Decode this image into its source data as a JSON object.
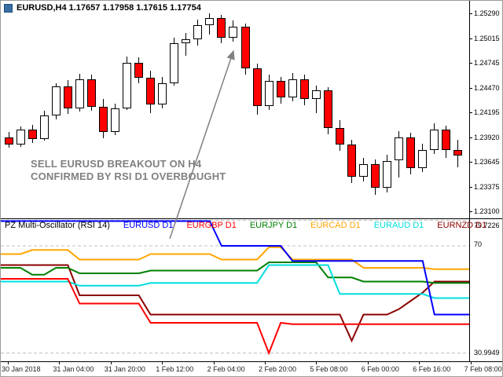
{
  "ui": {
    "symbol_header": "EURUSD,H4  1.17657 1.17958 1.17615 1.17754",
    "annotation_line1": "SELL EURUSD BREAKOUT ON H4",
    "annotation_line2": "CONFIRMED BY RSI D1 OVERBOUGHT",
    "annotation_color": "#808080",
    "indicator_title": "PZ Multi-Oscillator (RSI 14)"
  },
  "colors": {
    "background": "#FFFFFF",
    "axis_line": "#000000",
    "level_line": "#C0C0C0",
    "arrow": "#808080"
  },
  "chart_data": [
    {
      "type": "candlestick",
      "title": "EURUSD,H4",
      "ohlc_readout": {
        "open": "1.17657",
        "high": "1.17958",
        "low": "1.17615",
        "close": "1.17754"
      },
      "bull_color": "#FFFFFF",
      "bear_color": "#FF0000",
      "outline_color": "#000000",
      "ylim": [
        1.231,
        1.2529
      ],
      "y_axis_labels": [
        "1.25290",
        "1.25015",
        "1.24745",
        "1.24470",
        "1.24195",
        "1.23920",
        "1.23645",
        "1.23375",
        "1.23100"
      ],
      "x_axis_labels": [
        "30 Jan 2018",
        "31 Jan 04:00",
        "31 Jan 20:00",
        "1 Feb 12:00",
        "2 Feb 04:00",
        "2 Feb 20:00",
        "5 Feb 08:00",
        "6 Feb 00:00",
        "6 Feb 16:00",
        "7 Feb 08:00"
      ],
      "candles": [
        [
          1.2392,
          1.2398,
          1.238,
          1.2384
        ],
        [
          1.2384,
          1.2404,
          1.2381,
          1.24
        ],
        [
          1.24,
          1.2406,
          1.2386,
          1.239
        ],
        [
          1.239,
          1.2421,
          1.2388,
          1.2416
        ],
        [
          1.2416,
          1.2452,
          1.2412,
          1.2448
        ],
        [
          1.2448,
          1.2455,
          1.2418,
          1.2424
        ],
        [
          1.2424,
          1.2462,
          1.242,
          1.2456
        ],
        [
          1.2456,
          1.2461,
          1.2421,
          1.2426
        ],
        [
          1.2426,
          1.2434,
          1.2391,
          1.2398
        ],
        [
          1.2398,
          1.2429,
          1.2394,
          1.2424
        ],
        [
          1.2424,
          1.2481,
          1.2422,
          1.2474
        ],
        [
          1.2474,
          1.248,
          1.2452,
          1.2458
        ],
        [
          1.2458,
          1.2466,
          1.2419,
          1.2428
        ],
        [
          1.2428,
          1.2459,
          1.2424,
          1.2452
        ],
        [
          1.2452,
          1.2502,
          1.2449,
          1.2496
        ],
        [
          1.2496,
          1.2507,
          1.2482,
          1.25
        ],
        [
          1.25,
          1.2522,
          1.2493,
          1.2516
        ],
        [
          1.2516,
          1.2529,
          1.2506,
          1.2524
        ],
        [
          1.2524,
          1.2527,
          1.2496,
          1.2502
        ],
        [
          1.2502,
          1.2521,
          1.2498,
          1.2514
        ],
        [
          1.2514,
          1.2518,
          1.2461,
          1.2468
        ],
        [
          1.2468,
          1.2473,
          1.2417,
          1.2426
        ],
        [
          1.2426,
          1.2461,
          1.2422,
          1.2454
        ],
        [
          1.2454,
          1.2459,
          1.2429,
          1.2436
        ],
        [
          1.2436,
          1.2463,
          1.2432,
          1.2456
        ],
        [
          1.2456,
          1.2461,
          1.2427,
          1.2434
        ],
        [
          1.2434,
          1.2449,
          1.2419,
          1.2444
        ],
        [
          1.2444,
          1.2447,
          1.2395,
          1.2402
        ],
        [
          1.2402,
          1.2411,
          1.2377,
          1.2384
        ],
        [
          1.2384,
          1.2389,
          1.2341,
          1.2348
        ],
        [
          1.2348,
          1.2369,
          1.2343,
          1.2362
        ],
        [
          1.2362,
          1.2367,
          1.2328,
          1.2336
        ],
        [
          1.2336,
          1.2373,
          1.2331,
          1.2366
        ],
        [
          1.2366,
          1.2399,
          1.2347,
          1.2392
        ],
        [
          1.2392,
          1.2397,
          1.2351,
          1.2358
        ],
        [
          1.2358,
          1.2385,
          1.2353,
          1.2378
        ],
        [
          1.2378,
          1.2407,
          1.2373,
          1.24
        ],
        [
          1.24,
          1.2405,
          1.2369,
          1.2378
        ],
        [
          1.2378,
          1.2389,
          1.2359,
          1.2372
        ]
      ]
    },
    {
      "type": "line",
      "title": "PZ Multi-Oscillator (RSI 14)",
      "ylim": [
        28,
        82
      ],
      "levels": [
        79.7226,
        70,
        30.9949
      ],
      "y_axis_labels": [
        "79.7226",
        "70",
        "30.9949"
      ],
      "series": [
        {
          "name": "EURUSD D1",
          "color": "#0000FF",
          "values": [
            79,
            79,
            79,
            79,
            79,
            79,
            79,
            79,
            79,
            79,
            79,
            79,
            79,
            79,
            79,
            79,
            79,
            79,
            70,
            70,
            70,
            70,
            70,
            70,
            64.5,
            64.5,
            64.5,
            64.5,
            64.5,
            64.5,
            64.5,
            64.5,
            64.5,
            64.5,
            64.5,
            64.5,
            45,
            45,
            45
          ]
        },
        {
          "name": "EURGBP D1",
          "color": "#FF0000",
          "values": [
            58,
            58,
            58,
            58,
            58,
            58,
            49,
            49,
            49,
            49,
            49,
            49,
            42,
            42,
            42,
            42,
            42,
            42,
            42,
            42,
            42,
            42,
            31,
            42,
            41.5,
            41.5,
            41.5,
            41.5,
            41.5,
            41.5,
            41.5,
            41.5,
            41.5,
            41.5,
            41.5,
            41.5,
            41.5,
            41.5,
            41.5
          ]
        },
        {
          "name": "EURJPY D1",
          "color": "#008000",
          "values": [
            62,
            62,
            59.5,
            59.5,
            62,
            62,
            60,
            60,
            60,
            60,
            60,
            60,
            61,
            61,
            61,
            61,
            61,
            61,
            61,
            61,
            61,
            61,
            64,
            64,
            64,
            64,
            64,
            58.5,
            58.5,
            58.5,
            57,
            57,
            57,
            57,
            57,
            57,
            56.5,
            56.5,
            56.5
          ]
        },
        {
          "name": "EURCAD D1",
          "color": "#FFA500",
          "values": [
            67,
            67,
            68.5,
            68.5,
            68.5,
            68.5,
            65,
            65,
            65,
            65,
            65,
            65,
            67,
            67,
            67,
            67,
            67,
            67,
            65,
            65,
            65,
            65,
            69.5,
            69.5,
            65,
            65,
            65,
            65,
            65,
            65,
            62,
            62,
            62,
            62,
            62,
            62,
            61.5,
            61.5,
            61.5
          ]
        },
        {
          "name": "EURAUD D1",
          "color": "#00DDDD",
          "values": [
            57,
            57,
            57,
            57,
            57,
            57,
            55.5,
            55.5,
            55.5,
            55.5,
            55.5,
            55.5,
            56.5,
            56.5,
            56.5,
            56.5,
            56.5,
            56.5,
            56.5,
            56.5,
            56.5,
            56.5,
            63,
            63,
            63,
            63,
            63,
            63,
            52.5,
            52.5,
            52.5,
            52.5,
            52.5,
            52.5,
            52.5,
            52.5,
            51,
            51,
            51
          ]
        },
        {
          "name": "EURNZD D1",
          "color": "#8B0000",
          "values": [
            63,
            63,
            63,
            63,
            63,
            63,
            52,
            52,
            52,
            52,
            52,
            52,
            45,
            45,
            45,
            45,
            45,
            45,
            45,
            45,
            45,
            45,
            45,
            45,
            45,
            45,
            45,
            45,
            45,
            35.5,
            45,
            45,
            45,
            47,
            50,
            53,
            57,
            57,
            57
          ]
        }
      ]
    }
  ]
}
